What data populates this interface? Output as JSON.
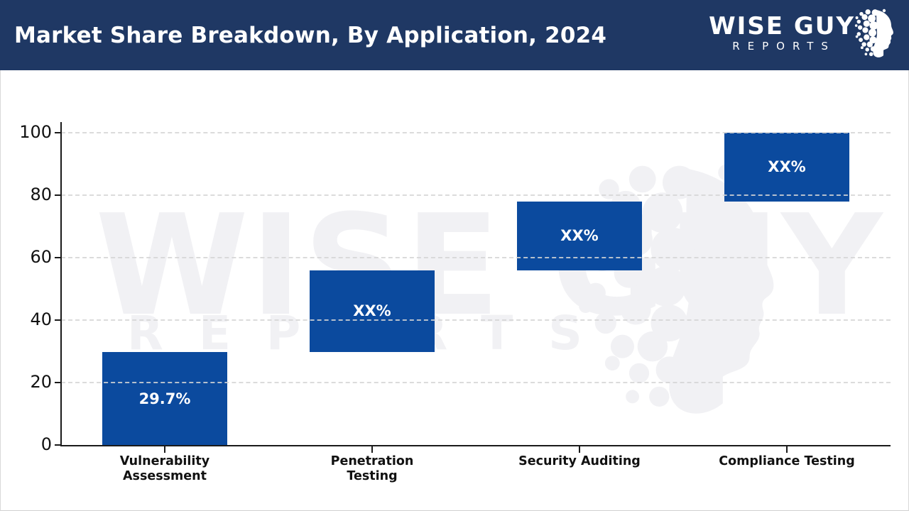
{
  "header": {
    "title": "Market Share Breakdown, By Application, 2024",
    "bg_color": "#1F3864",
    "logo": {
      "wordmark": "WISE GUY",
      "subtext": "REPORTS"
    }
  },
  "watermark": {
    "wordmark": "WISE GUY",
    "subtext": "REPORTS"
  },
  "chart_data": {
    "type": "bar",
    "subtype": "waterfall",
    "title": "Market Share Breakdown, By Application, 2024",
    "categories": [
      "Vulnerability Assessment",
      "Penetration Testing",
      "Security Auditing",
      "Compliance Testing"
    ],
    "segments": [
      {
        "category_lines": [
          "Vulnerability",
          "Assessment"
        ],
        "start": 0,
        "end": 29.7,
        "label": "29.7%"
      },
      {
        "category_lines": [
          "Penetration",
          "Testing"
        ],
        "start": 29.7,
        "end": 56,
        "label": "XX%"
      },
      {
        "category_lines": [
          "Security Auditing"
        ],
        "start": 56,
        "end": 78,
        "label": "XX%"
      },
      {
        "category_lines": [
          "Compliance Testing"
        ],
        "start": 78,
        "end": 100,
        "label": "XX%"
      }
    ],
    "ylim": [
      0,
      100
    ],
    "yticks": [
      0,
      20,
      40,
      60,
      80,
      100
    ],
    "grid": "horizontal-dashed",
    "legend": "none",
    "bar_color": "#0B4A9E",
    "bar_label_color": "#FFFFFF",
    "axis_color": "#1A1A1A",
    "tick_label_color": "#111111",
    "gridline_color": "#D5D5D5"
  }
}
